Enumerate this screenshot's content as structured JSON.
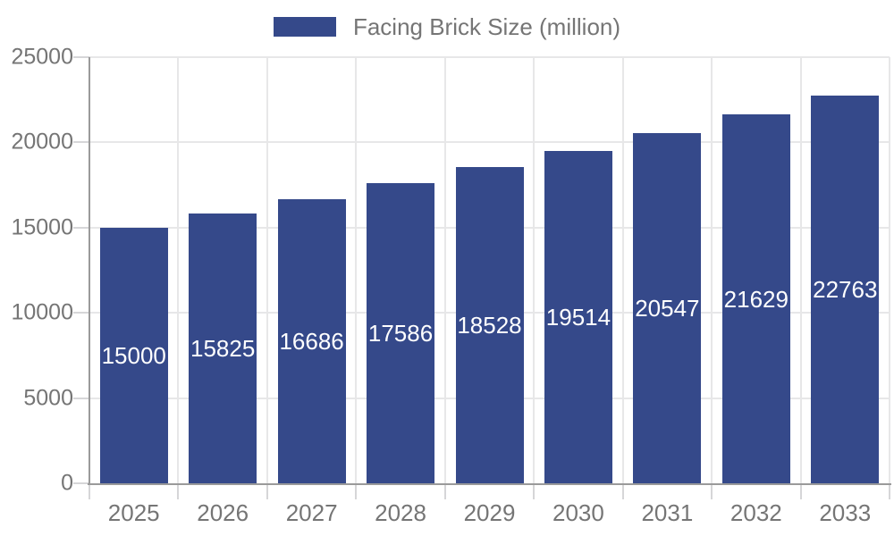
{
  "chart_data": {
    "type": "bar",
    "title": "",
    "legend": "Facing Brick Size (million)",
    "legend_position": "top",
    "categories": [
      "2025",
      "2026",
      "2027",
      "2028",
      "2029",
      "2030",
      "2031",
      "2032",
      "2033"
    ],
    "values": [
      15000,
      15825,
      16686,
      17586,
      18528,
      19514,
      20547,
      21629,
      22763
    ],
    "xlabel": "",
    "ylabel": "",
    "ylim": [
      0,
      25000
    ],
    "yticks": [
      0,
      5000,
      10000,
      15000,
      20000,
      25000
    ],
    "grid": true,
    "value_labels": "inside-center",
    "colors": {
      "bar": "#35498a",
      "bar_label": "#ffffff",
      "axis_text": "#757575",
      "axis_line": "#9a9a9a",
      "gridline": "#e7e7e8",
      "tick": "#d6d6d8",
      "background": "#ffffff"
    }
  }
}
